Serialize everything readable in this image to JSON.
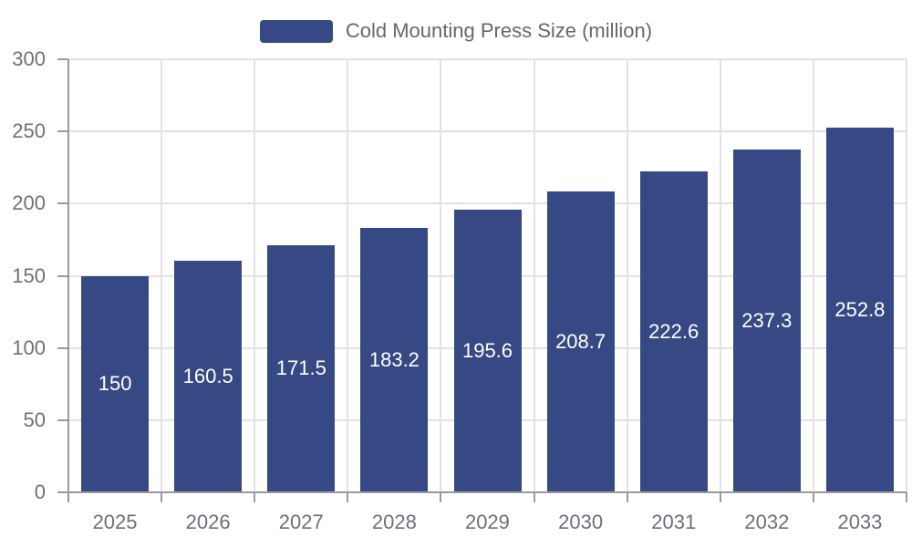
{
  "legend": {
    "label": "Cold Mounting Press Size (million)"
  },
  "chart_data": {
    "type": "bar",
    "title": "Cold Mounting Press Size (million)",
    "categories": [
      "2025",
      "2026",
      "2027",
      "2028",
      "2029",
      "2030",
      "2031",
      "2032",
      "2033"
    ],
    "values": [
      150,
      160.5,
      171.5,
      183.2,
      195.6,
      208.7,
      222.6,
      237.3,
      252.8
    ],
    "value_labels": [
      "150",
      "160.5",
      "171.5",
      "183.2",
      "195.6",
      "208.7",
      "222.6",
      "237.3",
      "252.8"
    ],
    "xlabel": "",
    "ylabel": "",
    "ylim": [
      0,
      300
    ],
    "yticks": [
      0,
      50,
      100,
      150,
      200,
      250,
      300
    ],
    "grid": true,
    "legend_position": "top-center",
    "colors": {
      "bar": "#364985",
      "bar_value_text": "#ffffff",
      "axis_line": "#9a9a9a",
      "grid_line": "#e2e2e2",
      "tick_label": "#6e7079",
      "legend_text": "#636770",
      "background": "#ffffff"
    }
  }
}
